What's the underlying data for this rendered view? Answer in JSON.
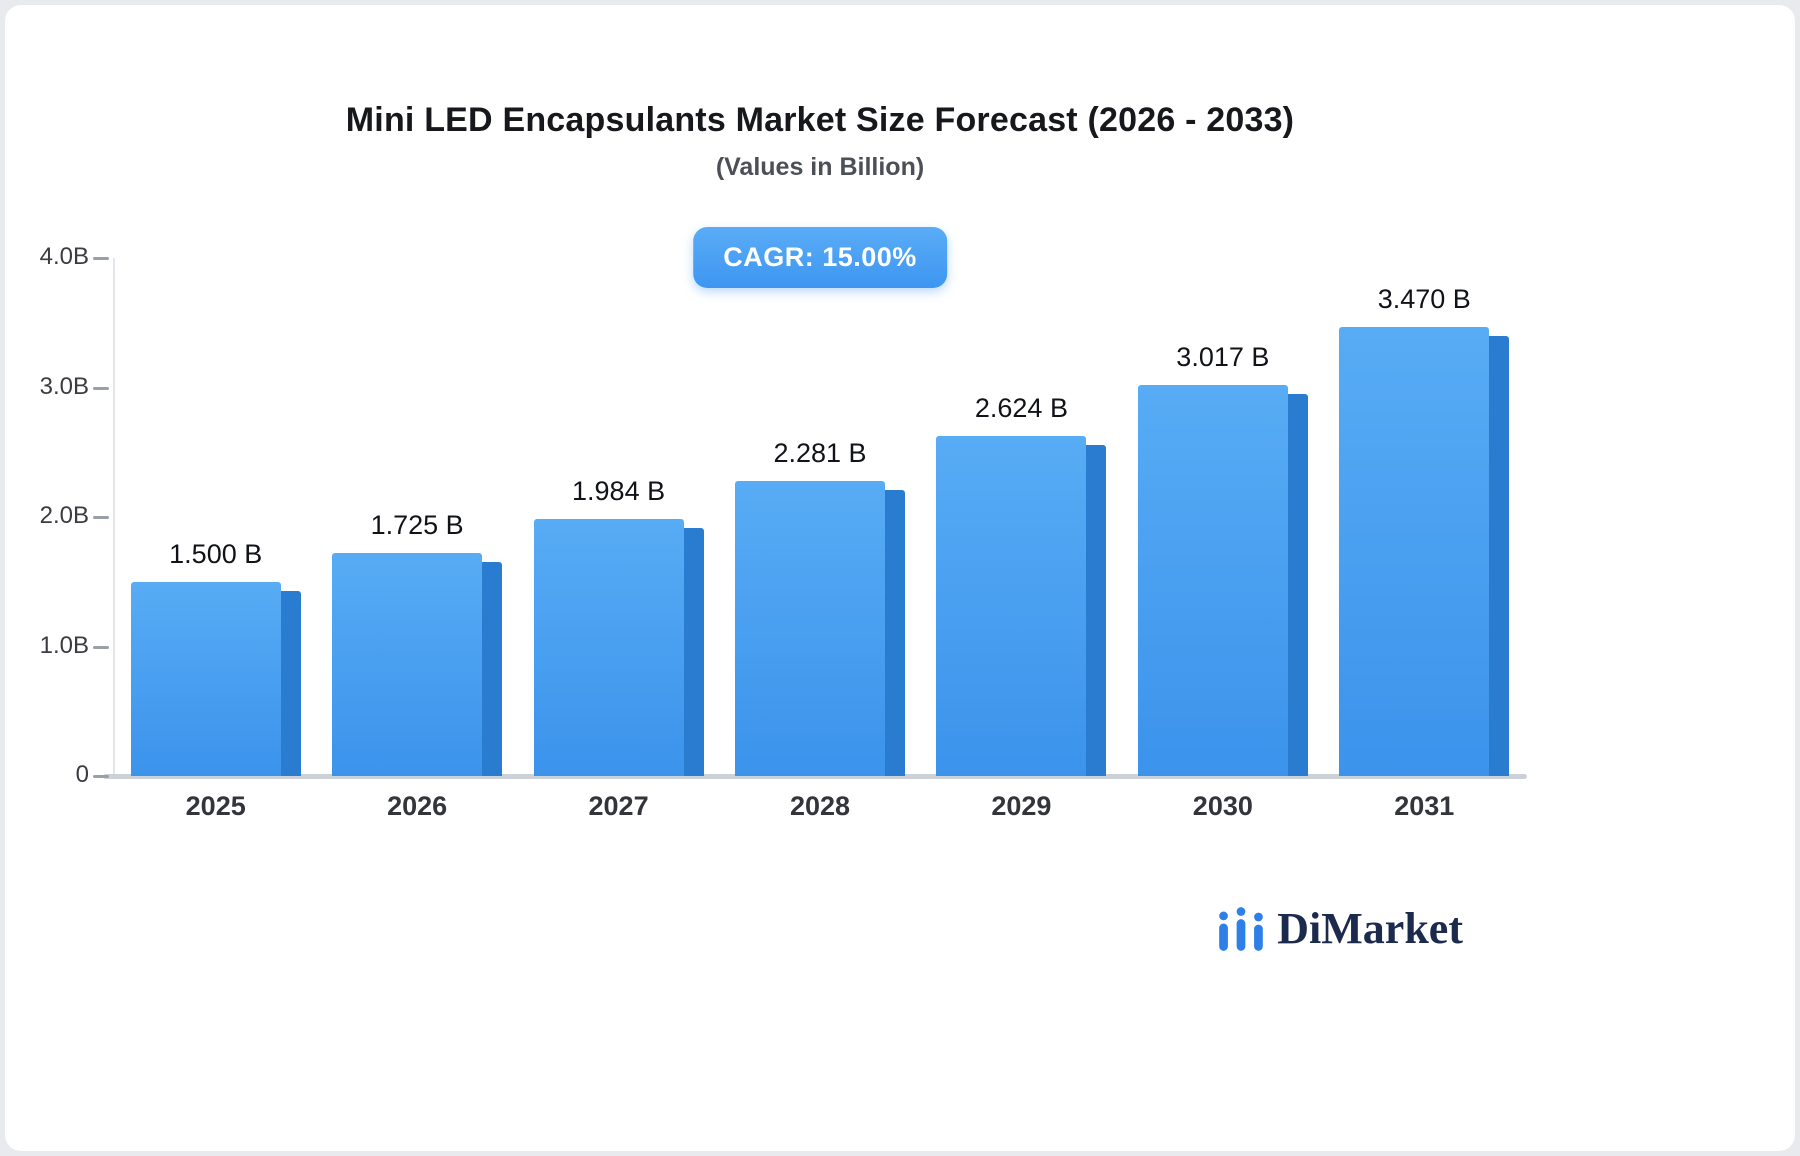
{
  "header": {
    "title": "Mini LED Encapsulants Market Size Forecast (2026 - 2033)",
    "subtitle": "(Values in Billion)",
    "cagr_badge": "CAGR: 15.00%"
  },
  "chart_data": {
    "type": "bar",
    "categories": [
      "2025",
      "2026",
      "2027",
      "2028",
      "2029",
      "2030",
      "2031"
    ],
    "values": [
      1.5,
      1.725,
      1.984,
      2.281,
      2.624,
      3.017,
      3.47
    ],
    "value_labels": [
      "1.500 B",
      "1.725 B",
      "1.984 B",
      "2.281 B",
      "2.624 B",
      "3.017 B",
      "3.470 B"
    ],
    "title": "Mini LED Encapsulants Market Size Forecast (2026 - 2033)",
    "subtitle": "(Values in Billion)",
    "xlabel": "",
    "ylabel": "",
    "ylim": [
      0,
      4.0
    ],
    "yticks": [
      {
        "value": 0,
        "label": "0"
      },
      {
        "value": 1,
        "label": "1.0B"
      },
      {
        "value": 2,
        "label": "2.0B"
      },
      {
        "value": 3,
        "label": "3.0B"
      },
      {
        "value": 4,
        "label": "4.0B"
      }
    ],
    "legend": false,
    "grid": false,
    "bar_color": "#3b93eb",
    "bar_side_color": "#2a7cd0"
  },
  "footer": {
    "brand": "DiMarket"
  },
  "colors": {
    "badge_bg": "#47a0f4",
    "badge_text": "#ffffff",
    "brand_text": "#1c2b4d",
    "brand_icon": "#2e7fe8"
  }
}
